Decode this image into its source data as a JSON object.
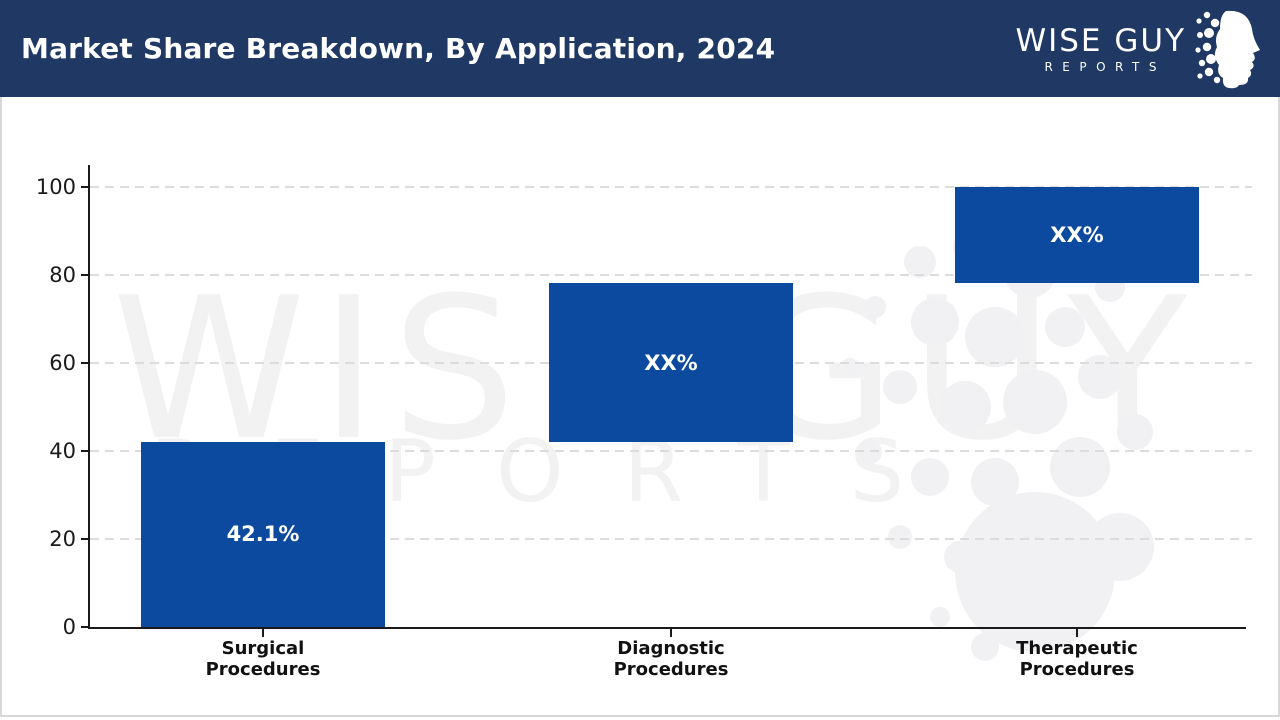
{
  "header": {
    "title": "Market Share Breakdown, By Application, 2024",
    "logo": {
      "line1": "WISE GUY",
      "line2": "REPORTS"
    }
  },
  "watermark": {
    "line1": "WISE GUY",
    "line2": "REPORTS"
  },
  "chart_data": {
    "type": "bar",
    "subtype": "waterfall",
    "title": "Market Share Breakdown, By Application, 2024",
    "categories": [
      "Surgical\nProcedures",
      "Diagnostic\nProcedures",
      "Therapeutic\nProcedures"
    ],
    "segments": [
      {
        "category": "Surgical Procedures",
        "from": 0,
        "to": 42.1,
        "label": "42.1%"
      },
      {
        "category": "Diagnostic Procedures",
        "from": 42.1,
        "to": 78.1,
        "label": "XX%"
      },
      {
        "category": "Therapeutic Procedures",
        "from": 78.1,
        "to": 100,
        "label": "XX%"
      }
    ],
    "xlabel": "",
    "ylabel": "",
    "ylim": [
      0,
      100
    ],
    "yticks": [
      0,
      20,
      40,
      60,
      80,
      100
    ],
    "grid": "horizontal-dashed",
    "legend": "none",
    "colors": {
      "bar": "#0b4a9e",
      "header_bg": "#1f3864",
      "grid": "#dcdcdc",
      "axis": "#1a1a1a",
      "label_on_bar": "#ffffff",
      "watermark": "#f2f2f3",
      "frame": "#d9d9d9"
    }
  }
}
